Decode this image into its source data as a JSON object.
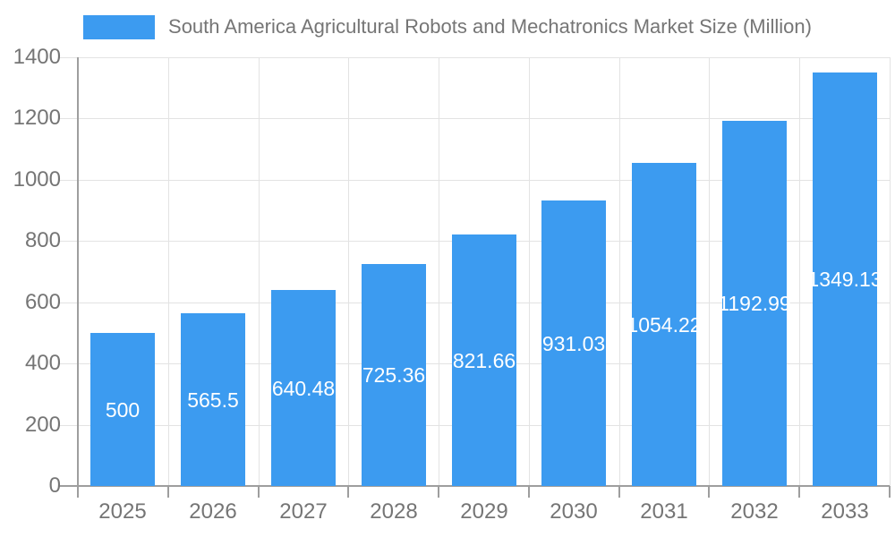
{
  "chart_data": {
    "type": "bar",
    "title": "South America Agricultural Robots and Mechatronics Market Size (Million)",
    "categories": [
      "2025",
      "2026",
      "2027",
      "2028",
      "2029",
      "2030",
      "2031",
      "2032",
      "2033"
    ],
    "values": [
      500,
      565.5,
      640.48,
      725.36,
      821.66,
      931.03,
      1054.22,
      1192.99,
      1349.13
    ],
    "value_labels": [
      "500",
      "565.5",
      "640.48",
      "725.36",
      "821.66",
      "931.03",
      "1054.22",
      "1192.99",
      "1349.13"
    ],
    "xlabel": "",
    "ylabel": "",
    "ylim": [
      0,
      1400
    ],
    "yticks": [
      0,
      200,
      400,
      600,
      800,
      1000,
      1200,
      1400
    ],
    "grid": true,
    "legend_position": "top-center",
    "colors": {
      "bar": "#3C9BF0",
      "axis_line": "#9E9E9E",
      "gridline": "#E3E3E3",
      "tick_label": "#757575",
      "value_label": "#FFFFFF",
      "background": "#FFFFFF"
    }
  }
}
